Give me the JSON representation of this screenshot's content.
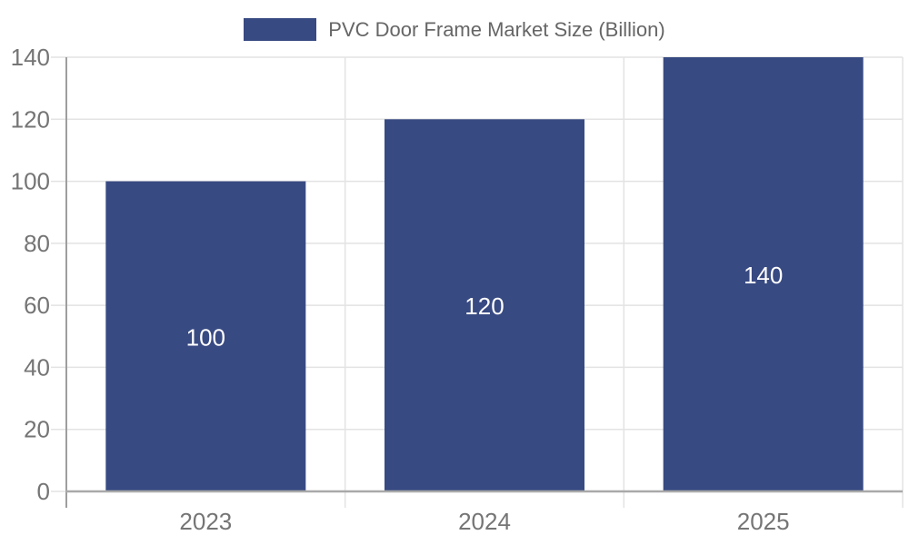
{
  "chart_data": {
    "type": "bar",
    "title": "PVC Door Frame Market Size (Billion)",
    "categories": [
      "2023",
      "2024",
      "2025"
    ],
    "values": [
      100,
      120,
      140
    ],
    "bar_labels": [
      "100",
      "120",
      "140"
    ],
    "xlabel": "",
    "ylabel": "",
    "ylim": [
      0,
      140
    ],
    "yticks": [
      0,
      20,
      40,
      60,
      80,
      100,
      120,
      140
    ],
    "grid": true,
    "legend_position": "top-center",
    "value_label_position": "inside-center",
    "colors": {
      "bar": "#384A82",
      "grid": "#E3E3E3",
      "y_axis": "#9E9E9E",
      "x_axis": "#A9A9A9",
      "tick_label": "#757575",
      "legend_text": "#666666",
      "bar_label": "#FFFFFF",
      "background": "#FFFFFF"
    }
  }
}
